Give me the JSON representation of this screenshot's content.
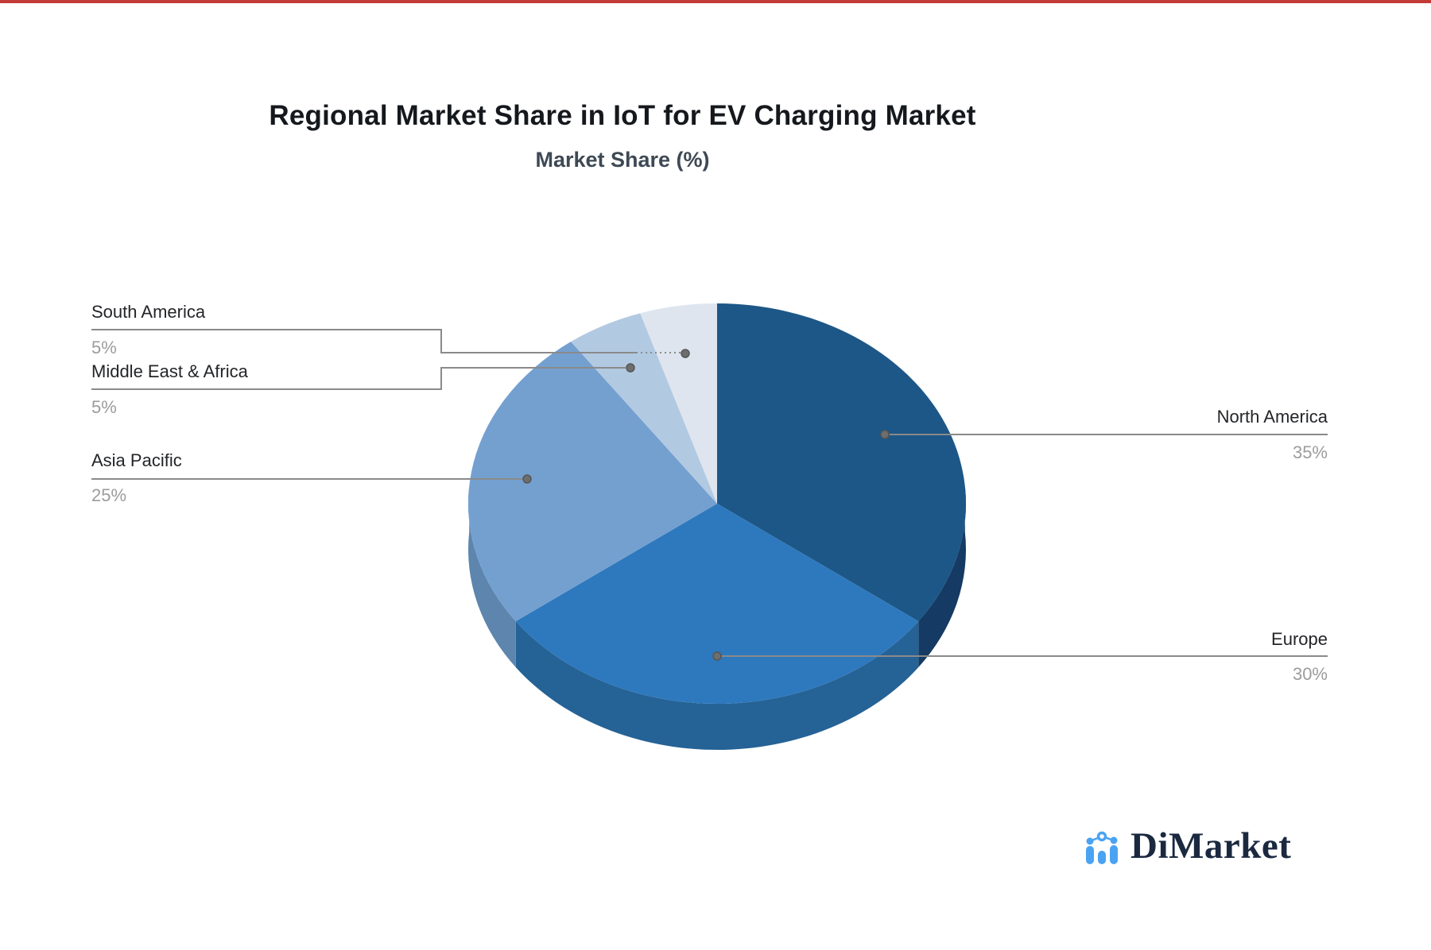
{
  "page": {
    "top_rule_color": "#c43a36",
    "background": "#ffffff"
  },
  "title": "Regional Market Share in IoT for EV Charging Market",
  "subtitle": "Market Share (%)",
  "chart_data": {
    "type": "pie",
    "style": "3d",
    "title": "Regional Market Share in IoT for EV Charging Market",
    "subtitle": "Market Share (%)",
    "unit": "%",
    "start_angle": "12-oclock, clockwise",
    "legend_position": "none",
    "label_color": "#232528",
    "value_color": "#9c9c9c",
    "leader_line_color": "#8a8a8a",
    "slices": [
      {
        "label": "North America",
        "value": 35,
        "value_label": "35%",
        "color": "#1d5787",
        "side_color": "#153a63"
      },
      {
        "label": "Europe",
        "value": 30,
        "value_label": "30%",
        "color": "#2e79bd",
        "side_color": "#256296"
      },
      {
        "label": "Asia Pacific",
        "value": 25,
        "value_label": "25%",
        "color": "#74a0d0",
        "side_color": "#5d85ad"
      },
      {
        "label": "Middle East & Africa",
        "value": 5,
        "value_label": "5%",
        "color": "#b2c9e2",
        "side_color": "#8fb0d3"
      },
      {
        "label": "South America",
        "value": 5,
        "value_label": "5%",
        "color": "#dee5ef",
        "side_color": "#b9c6d8"
      }
    ]
  },
  "logo": {
    "text": "DiMarket",
    "icon": "bar-chart-logo-icon",
    "icon_color": "#4aa3f2",
    "text_color": "#1b2940"
  }
}
